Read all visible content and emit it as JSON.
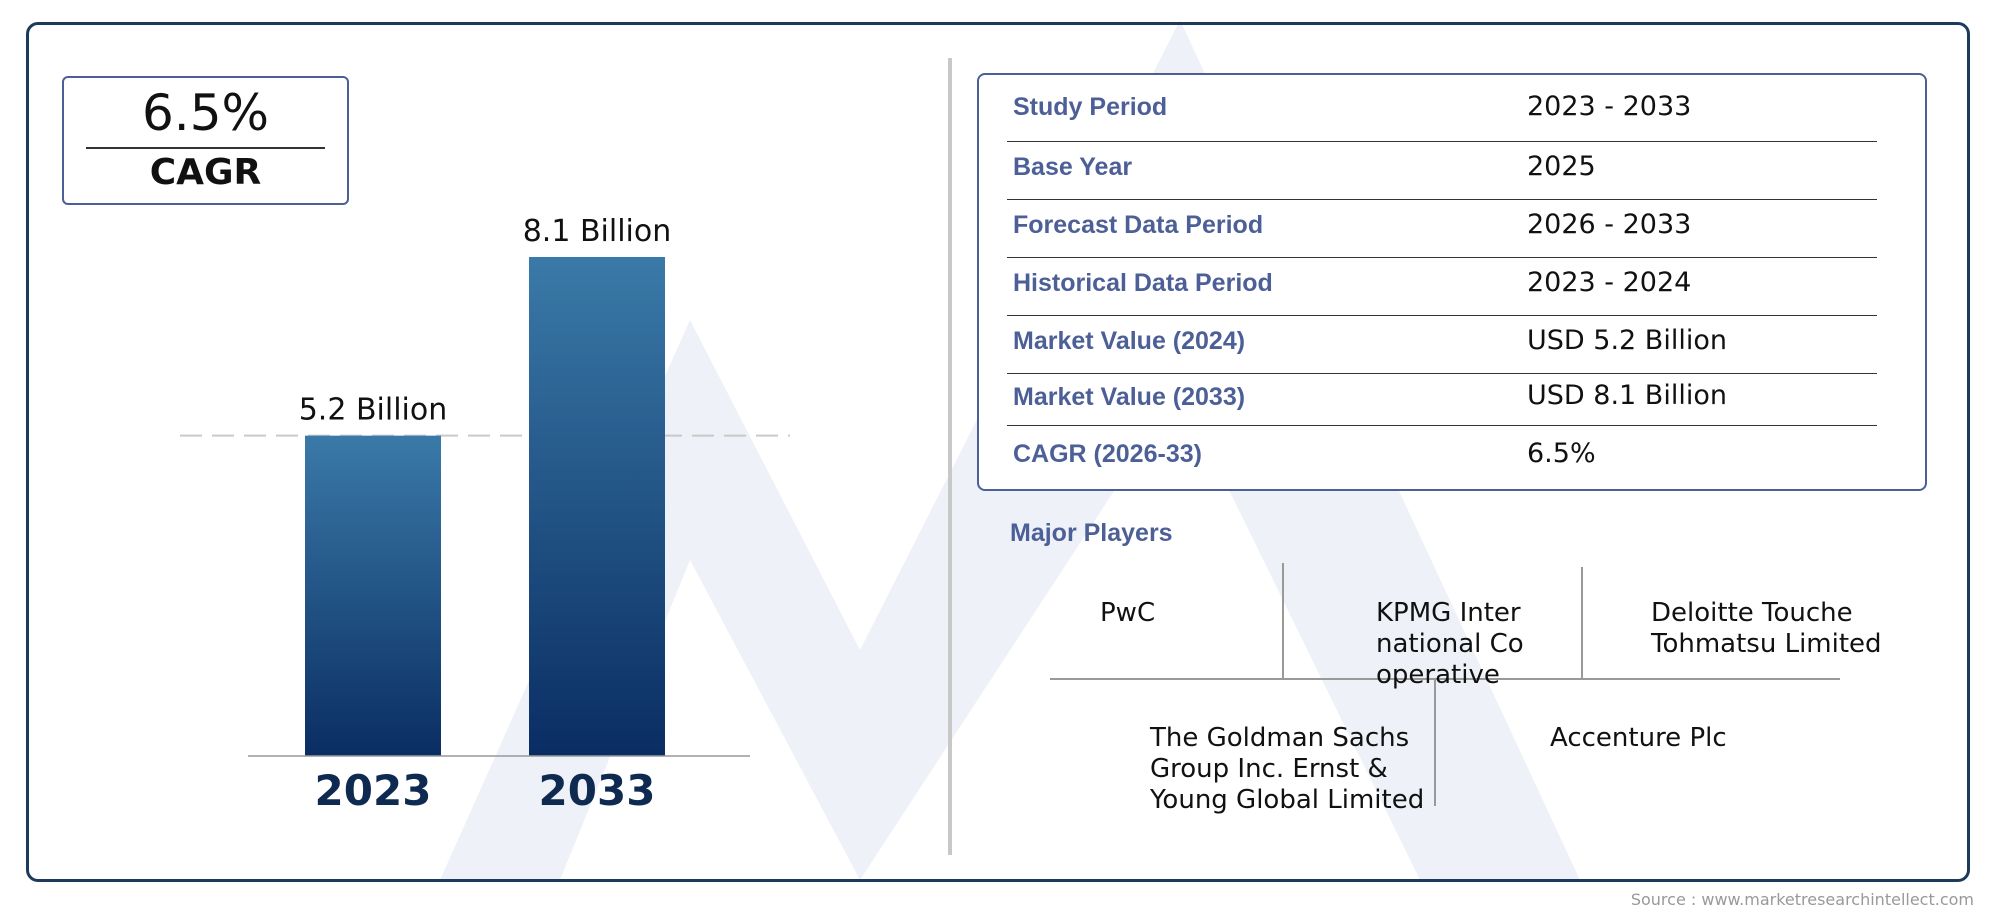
{
  "cagr": {
    "value": "6.5%",
    "label": "CAGR"
  },
  "chart_data": {
    "type": "bar",
    "categories": [
      "2023",
      "2033"
    ],
    "values": [
      5.2,
      8.1
    ],
    "value_labels": [
      "5.2 Billion",
      "8.1 Billion"
    ],
    "title": "",
    "xlabel": "",
    "ylabel": "",
    "ylim": [
      0,
      8.1
    ],
    "reference_line": "dashed line at 2023 level",
    "grid": false,
    "colors": {
      "bar_top": "#3a7aa8",
      "bar_bottom": "#0a2d63",
      "year_label": "#0e2a50"
    }
  },
  "summary": {
    "rows": [
      {
        "label": "Study Period",
        "value": "2023 - 2033"
      },
      {
        "label": "Base Year",
        "value": "2025"
      },
      {
        "label": "Forecast Data Period",
        "value": "2026 - 2033"
      },
      {
        "label": "Historical Data Period",
        "value": "2023 - 2024"
      },
      {
        "label": "Market Value (2024)",
        "value": "USD 5.2 Billion"
      },
      {
        "label": "Market Value (2033)",
        "value": "USD 8.1 Billion"
      },
      {
        "label": "CAGR (2026-33)",
        "value": "6.5%"
      }
    ]
  },
  "players": {
    "title": "Major Players",
    "names": [
      "PwC",
      "KPMG International Cooperative",
      "Deloitte Touche Tohmatsu Limited",
      "The Goldman Sachs Group Inc. Ernst & Young Global Limited",
      "Accenture Plc"
    ]
  },
  "source": "Source : www.marketresearchintellect.com",
  "colors": {
    "frame": "#1c3a5c",
    "accent": "#4c5f97",
    "watermark": "#eef1f7"
  }
}
